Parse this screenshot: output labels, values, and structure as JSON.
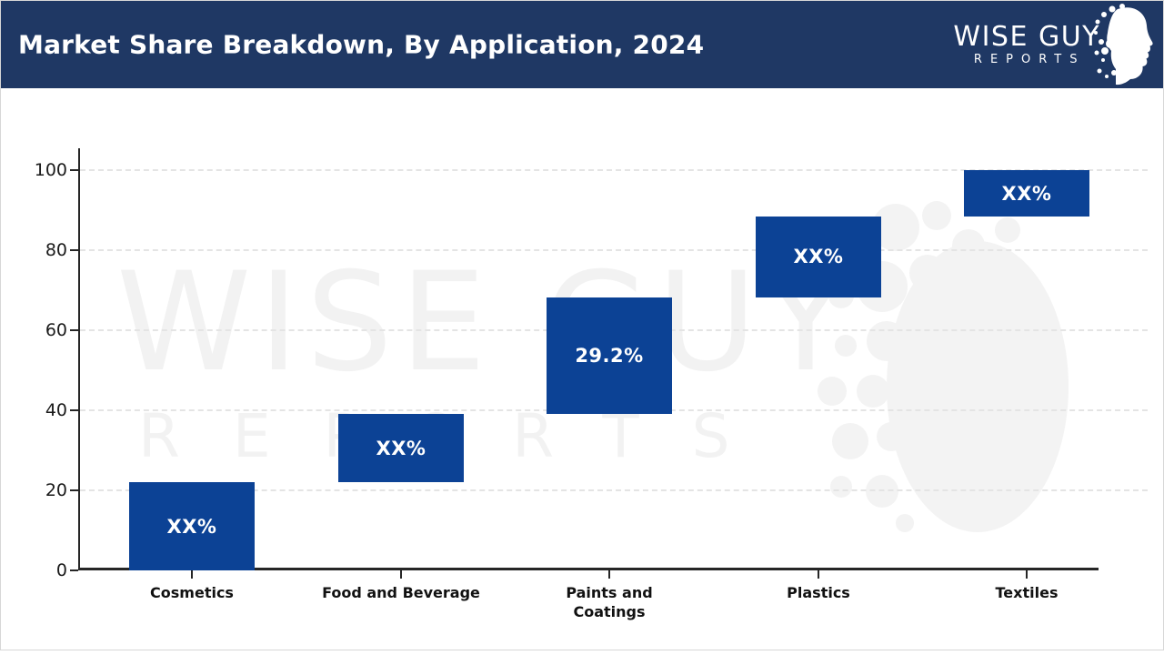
{
  "header": {
    "title": "Market Share Breakdown, By Application, 2024",
    "logo": {
      "line1": "WISE GUY",
      "line2": "REPORTS"
    }
  },
  "watermark": {
    "line1": "WISE GUY",
    "line2": "REPORTS"
  },
  "chart_data": {
    "type": "bar",
    "subtype": "floating-waterfall",
    "title": "Market Share Breakdown, By Application, 2024",
    "categories": [
      "Cosmetics",
      "Food and Beverage",
      "Paints and\nCoatings",
      "Plastics",
      "Textiles"
    ],
    "segments": [
      {
        "category": "Cosmetics",
        "start": 0,
        "end": 22,
        "height": 22,
        "label": "XX%"
      },
      {
        "category": "Food and Beverage",
        "start": 22,
        "end": 39,
        "height": 17,
        "label": "XX%"
      },
      {
        "category": "Paints and Coatings",
        "start": 39,
        "end": 68.2,
        "height": 29.2,
        "label": "29.2%"
      },
      {
        "category": "Plastics",
        "start": 68.2,
        "end": 88.4,
        "height": 20.2,
        "label": "XX%"
      },
      {
        "category": "Textiles",
        "start": 88.4,
        "end": 100,
        "height": 11.6,
        "label": "XX%"
      }
    ],
    "ylim": [
      0,
      100
    ],
    "yticks": [
      0,
      20,
      40,
      60,
      80,
      100
    ],
    "grid": "horizontal-dashed",
    "legend": "none",
    "bar_color": "#0c4295",
    "label_color": "#ffffff"
  },
  "colors": {
    "header_bg": "#1f3864",
    "accent_blue": "#0c4295",
    "axis": "#262626",
    "gridline": "#e4e4e4",
    "watermark": "#f2f2f2"
  }
}
